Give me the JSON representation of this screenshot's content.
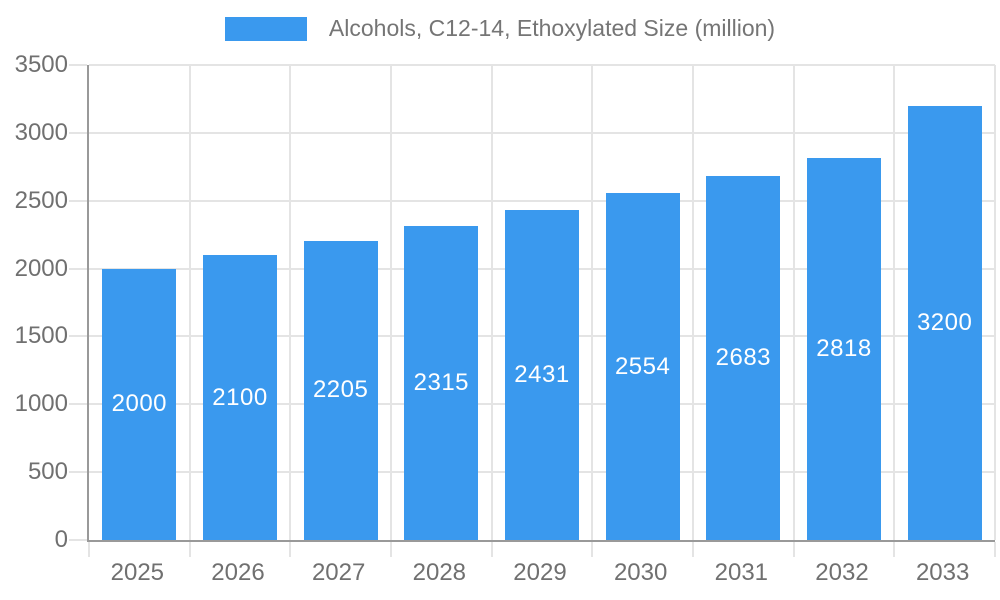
{
  "legend": {
    "label": "Alcohols, C12-14, Ethoxylated Size (million)"
  },
  "chart_data": {
    "type": "bar",
    "title": "Alcohols, C12-14, Ethoxylated Size (million)",
    "categories": [
      "2025",
      "2026",
      "2027",
      "2028",
      "2029",
      "2030",
      "2031",
      "2032",
      "2033"
    ],
    "values": [
      2000,
      2100,
      2205,
      2315,
      2431,
      2554,
      2683,
      2818,
      3200
    ],
    "series_name": "Alcohols, C12-14, Ethoxylated Size (million)",
    "xlabel": "",
    "ylabel": "",
    "ylim": [
      0,
      3500
    ],
    "ytick_step": 500,
    "y_tick_labels": [
      "0",
      "500",
      "1000",
      "1500",
      "2000",
      "2500",
      "3000",
      "3500"
    ],
    "grid": true,
    "legend_position": "top-center",
    "bar_labels_inside": true,
    "colors": {
      "bar": "#3A99EE",
      "bar_label": "#ffffff",
      "axis_line": "#999999",
      "gridline": "#e4e4e4",
      "axis_label": "#707070",
      "legend_text": "#757575",
      "background": "#ffffff"
    }
  }
}
